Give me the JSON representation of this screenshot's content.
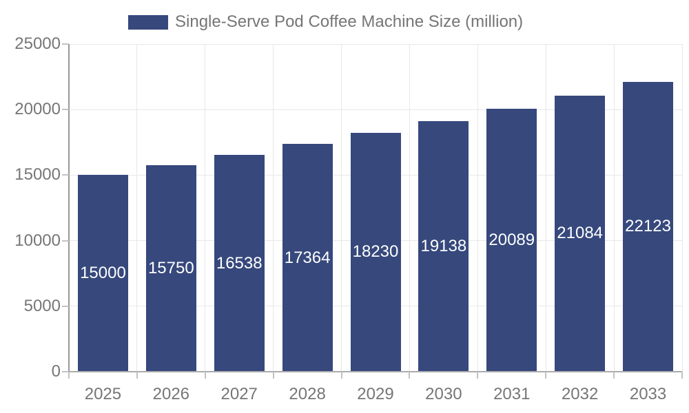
{
  "chart_data": {
    "type": "bar",
    "legend": [
      "Single-Serve Pod Coffee Machine Size (million)"
    ],
    "legend_position": "top",
    "categories": [
      "2025",
      "2026",
      "2027",
      "2028",
      "2029",
      "2030",
      "2031",
      "2032",
      "2033"
    ],
    "series": [
      {
        "name": "Single-Serve Pod Coffee Machine Size (million)",
        "values": [
          15000,
          15750,
          16538,
          17364,
          18230,
          19138,
          20089,
          21084,
          22123
        ],
        "color": "#36487c"
      }
    ],
    "xlabel": "",
    "ylabel": "",
    "ylim": [
      0,
      25000
    ],
    "yticks": [
      0,
      5000,
      10000,
      15000,
      20000,
      25000
    ],
    "grid": true,
    "value_labels_position": "inside-center"
  },
  "colors": {
    "bar": "#36487c",
    "value_label": "#ffffff",
    "axis_text": "#767676",
    "legend_text": "#757575",
    "gridline": "#e7e7e7",
    "axis_spine": "#989898",
    "axis_baseline": "#ababab",
    "tick": "#c2c2c2",
    "background": "#ffffff"
  }
}
